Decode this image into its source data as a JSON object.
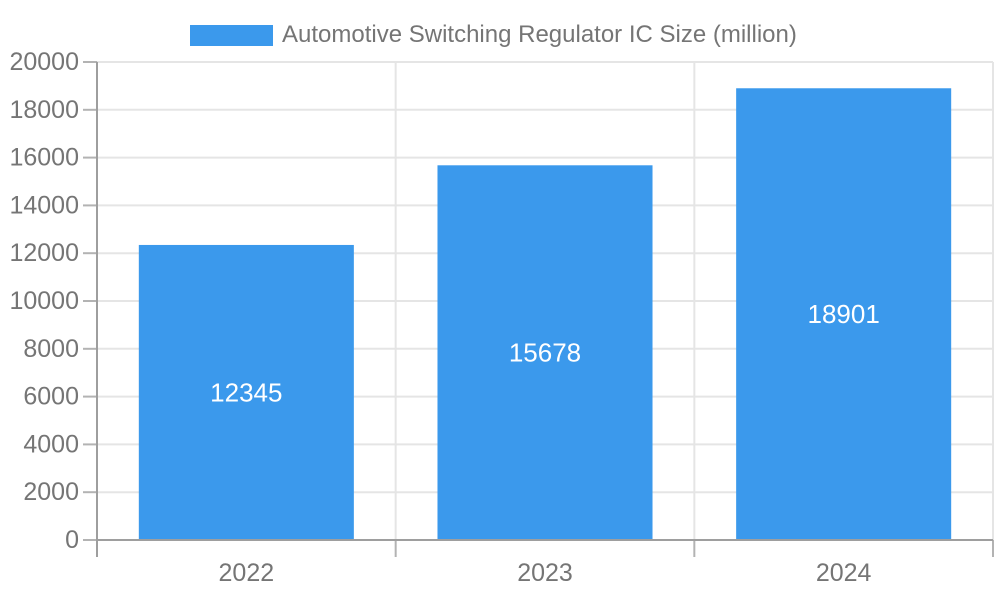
{
  "legend": {
    "label": "Automotive Switching Regulator IC Size (million)"
  },
  "chart_data": {
    "type": "bar",
    "title": "Automotive Switching Regulator IC Size (million)",
    "categories": [
      "2022",
      "2023",
      "2024"
    ],
    "values": [
      12345,
      15678,
      18901
    ],
    "bar_value_labels": [
      "12345",
      "15678",
      "18901"
    ],
    "xlabel": "",
    "ylabel": "",
    "ylim": [
      0,
      20000
    ],
    "ytick_step": 2000,
    "ytick_labels": [
      "0",
      "2000",
      "4000",
      "6000",
      "8000",
      "10000",
      "12000",
      "14000",
      "16000",
      "18000",
      "20000"
    ],
    "grid": true,
    "legend_position": "top",
    "colors": {
      "bar": "#3B99EC",
      "bar_label": "#ffffff",
      "axis_text": "#757575",
      "axis_line": "#9e9e9e",
      "tick": "#b3b3b3",
      "grid": "#e5e5e5"
    }
  }
}
